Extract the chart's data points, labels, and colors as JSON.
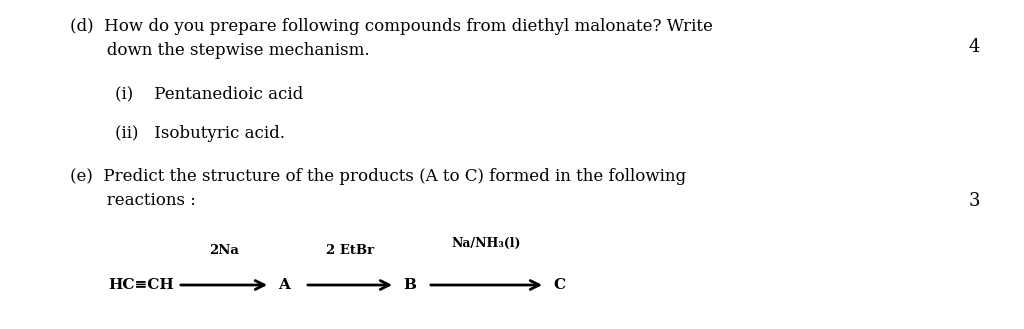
{
  "background_color": "#ffffff",
  "text_color": "#000000",
  "line1_d": "(d)  How do you prepare following compounds from diethyl malonate? Write",
  "line2_d": "       down the stepwise mechanism.",
  "mark_d": "4",
  "item_i": "(i)    Pentanedioic acid",
  "item_ii": "(ii)   Isobutyric acid.",
  "line1_e": "(e)  Predict the structure of the products (A to C) formed in the following",
  "line2_e": "       reactions :",
  "mark_e": "3",
  "reaction_start": "HC≡CH",
  "reagent1": "2Na",
  "label_A": "A",
  "reagent2": "2 EtBr",
  "label_B": "B",
  "reagent3": "Na/NH₃(l)",
  "label_C": "C",
  "font_size_body": 12,
  "font_size_reaction": 11,
  "font_size_reagent": 9.5,
  "font_size_mark": 13
}
